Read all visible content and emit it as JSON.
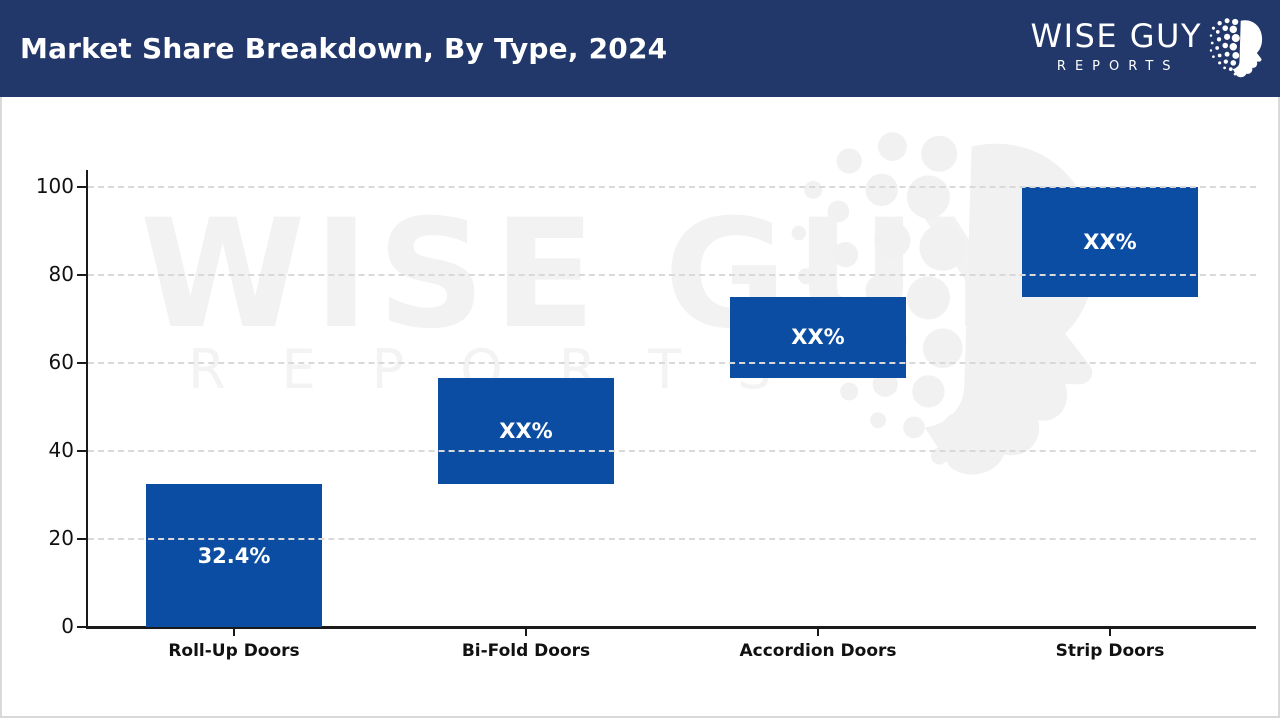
{
  "header": {
    "title": "Market Share Breakdown, By Type, 2024",
    "bg_color": "#22386B",
    "logo": {
      "line1": "WISE GUY",
      "line2": "REPORTS"
    }
  },
  "watermark": {
    "line1": "WISE GUY",
    "line2": "REPORTS"
  },
  "chart_data": {
    "type": "bar",
    "subtype": "waterfall",
    "title": "Market Share Breakdown, By Type, 2024",
    "categories": [
      "Roll-Up Doors",
      "Bi-Fold Doors",
      "Accordion Doors",
      "Strip Doors"
    ],
    "segments": [
      {
        "category": "Roll-Up Doors",
        "start": 0,
        "end": 32.4,
        "label": "32.4%"
      },
      {
        "category": "Bi-Fold Doors",
        "start": 32.4,
        "end": 56.6,
        "label": "XX%"
      },
      {
        "category": "Accordion Doors",
        "start": 56.6,
        "end": 75.0,
        "label": "XX%"
      },
      {
        "category": "Strip Doors",
        "start": 75.0,
        "end": 100.0,
        "label": "XX%"
      }
    ],
    "xlabel": "",
    "ylabel": "",
    "ylim": [
      0,
      100
    ],
    "yticks": [
      0,
      20,
      40,
      60,
      80,
      100
    ],
    "grid": "horizontal-dashed",
    "legend": "none",
    "bar_color": "#0B4DA2",
    "bar_label_color": "#FFFFFF",
    "axis_color": "#1A1A1A",
    "gridline_color": "#D9D9D9",
    "unit": "%"
  }
}
